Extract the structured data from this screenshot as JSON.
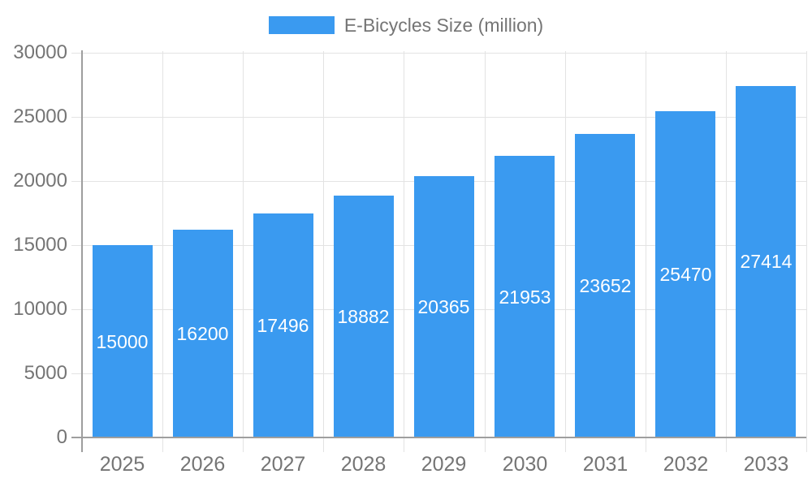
{
  "legend": {
    "items": [
      {
        "label": "E-Bicycles Size (million)",
        "color": "#3A9AF0"
      }
    ]
  },
  "chart_data": {
    "type": "bar",
    "title": "E-Bicycles Size (million)",
    "categories": [
      "2025",
      "2026",
      "2027",
      "2028",
      "2029",
      "2030",
      "2031",
      "2032",
      "2033"
    ],
    "series": [
      {
        "name": "E-Bicycles Size (million)",
        "color": "#3A9AF0",
        "values": [
          15000,
          16200,
          17496,
          18882,
          20365,
          21953,
          23652,
          25470,
          27414
        ]
      }
    ],
    "xlabel": "",
    "ylabel": "",
    "ylim": [
      0,
      30000
    ],
    "yticks": [
      0,
      5000,
      10000,
      15000,
      20000,
      25000,
      30000
    ],
    "grid": true,
    "legend_position": "top",
    "value_label_position": "inside-center",
    "colors": {
      "bar": "#3A9AF0",
      "grid_line": "#E3E3E3",
      "axis_line": "#9E9E9E",
      "tick_text": "#757575",
      "value_label_text": "#FFFFFF",
      "background": "#FFFFFF"
    }
  }
}
